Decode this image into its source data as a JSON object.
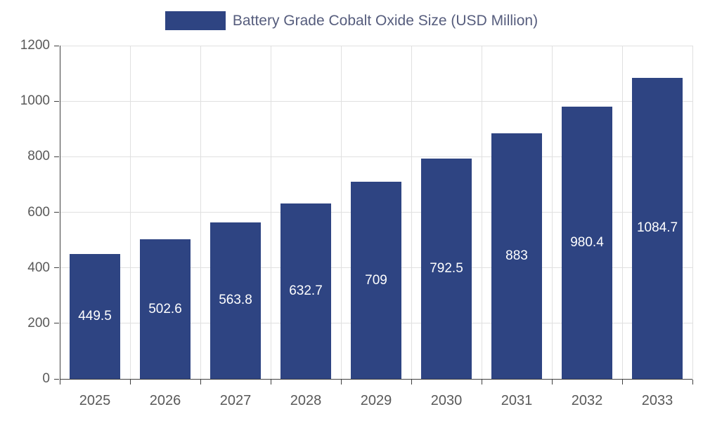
{
  "legend": {
    "label": "Battery Grade Cobalt Oxide Size (USD Million)"
  },
  "chart_data": {
    "type": "bar",
    "title": "Battery Grade Cobalt Oxide Size (USD Million)",
    "categories": [
      "2025",
      "2026",
      "2027",
      "2028",
      "2029",
      "2030",
      "2031",
      "2032",
      "2033"
    ],
    "values": [
      449.5,
      502.6,
      563.8,
      632.7,
      709,
      792.5,
      883,
      980.4,
      1084.7
    ],
    "value_labels": [
      "449.5",
      "502.6",
      "563.8",
      "632.7",
      "709",
      "792.5",
      "883",
      "980.4",
      "1084.7"
    ],
    "xlabel": "",
    "ylabel": "",
    "ylim": [
      0,
      1200
    ],
    "yticks": [
      0,
      200,
      400,
      600,
      800,
      1000,
      1200
    ],
    "grid": true,
    "legend_position": "top",
    "colors": {
      "bar": "#2e4482",
      "bar_value_text": "#ffffff",
      "legend_text": "#565d7d",
      "axis_text": "#595959",
      "axis_line": "#3f3f3f",
      "gridline": "#e0e0e0",
      "background": "#ffffff"
    }
  }
}
